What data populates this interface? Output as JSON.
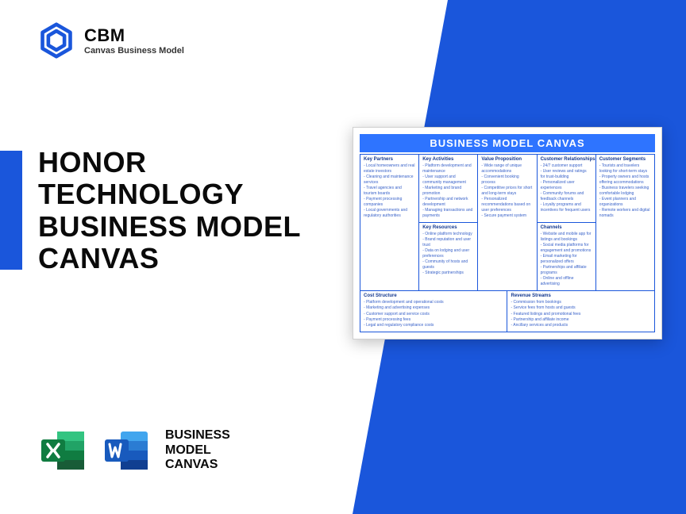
{
  "brand": {
    "short": "CBM",
    "long": "Canvas Business Model"
  },
  "headline": "HONOR TECHNOLOGY BUSINESS MODEL CANVAS",
  "badges_label_l1": "BUSINESS",
  "badges_label_l2": "MODEL",
  "badges_label_l3": "CANVAS",
  "colors": {
    "primary": "#1a56db",
    "header": "#2e74ff",
    "excel": "#107c41",
    "word": "#2b579a"
  },
  "canvas": {
    "title": "BUSINESS MODEL CANVAS",
    "blocks": {
      "kp": {
        "title": "Key Partners",
        "items": [
          "Local homeowners and real estate investors",
          "Cleaning and maintenance services",
          "Travel agencies and tourism boards",
          "Payment processing companies",
          "Local governments and regulatory authorities"
        ]
      },
      "ka": {
        "title": "Key Activities",
        "items": [
          "Platform development and maintenance",
          "User support and community management",
          "Marketing and brand promotion",
          "Partnership and network development",
          "Managing transactions and payments"
        ]
      },
      "kr": {
        "title": "Key Resources",
        "items": [
          "Online platform technology",
          "Brand reputation and user trust",
          "Data on lodging and user preferences",
          "Community of hosts and guests",
          "Strategic partnerships"
        ]
      },
      "vp": {
        "title": "Value Proposition",
        "items": [
          "Wide range of unique accommodations",
          "Convenient booking process",
          "Competitive prices for short and long-term stays",
          "Personalized recommendations based on user preferences",
          "Secure payment system"
        ]
      },
      "cr": {
        "title": "Customer Relationships",
        "items": [
          "24/7 customer support",
          "User reviews and ratings for trust-building",
          "Personalized user experiences",
          "Community forums and feedback channels",
          "Loyalty programs and incentives for frequent users"
        ]
      },
      "ch": {
        "title": "Channels",
        "items": [
          "Website and mobile app for listings and bookings",
          "Social media platforms for engagement and promotions",
          "Email marketing for personalized offers",
          "Partnerships and affiliate programs",
          "Online and offline advertising"
        ]
      },
      "cs": {
        "title": "Customer Segments",
        "items": [
          "Tourists and travelers looking for short-term stays",
          "Property owners and hosts offering accommodations",
          "Business travelers seeking comfortable lodging",
          "Event planners and organizations",
          "Remote workers and digital nomads"
        ]
      },
      "cost": {
        "title": "Cost Structure",
        "items": [
          "Platform development and operational costs",
          "Marketing and advertising expenses",
          "Customer support and service costs",
          "Payment processing fees",
          "Legal and regulatory compliance costs"
        ]
      },
      "rev": {
        "title": "Revenue Streams",
        "items": [
          "Commission from bookings",
          "Service fees from hosts and guests",
          "Featured listings and promotional fees",
          "Partnership and affiliate income",
          "Ancillary services and products"
        ]
      }
    }
  }
}
